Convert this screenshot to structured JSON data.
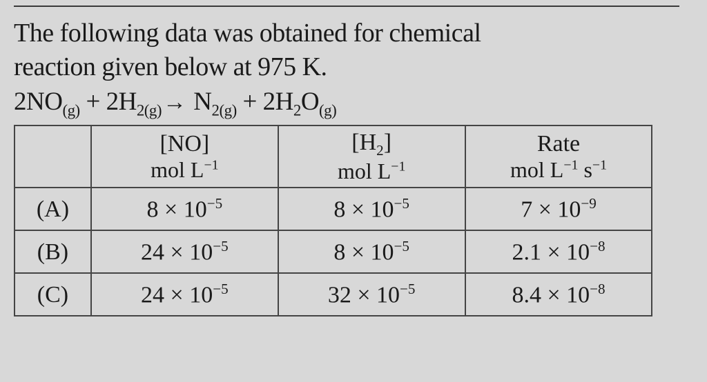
{
  "meta": {
    "type": "table",
    "background_color": "#d8d8d8",
    "text_color": "#1a1a1a",
    "font_family": "Times New Roman",
    "border_color": "#444444",
    "border_width": 2,
    "intro_fontsize": 38,
    "equation_fontsize": 37,
    "cell_fontsize": 34
  },
  "intro": {
    "line1": "The following data was obtained for chemical",
    "line2": "reaction given below at 975 K."
  },
  "equation": {
    "r1_coef": "2NO",
    "r1_phase": "(g)",
    "plus1": " + ",
    "r2_coef": "2H",
    "r2_sub": "2(g)",
    "arrow": "→",
    "p1_coef": " N",
    "p1_sub": "2(g)",
    "plus2": " + ",
    "p2_coef": "2H",
    "p2_sub": "2",
    "p2_ox": "O",
    "p2_phase": "(g)"
  },
  "headers": {
    "blank": "",
    "col1_label": "[NO]",
    "col1_unit_pre": "mol L",
    "col1_unit_exp": "−1",
    "col2_label": "[H",
    "col2_label_sub": "2",
    "col2_label_close": "]",
    "col2_unit_pre": "mol L",
    "col2_unit_exp": "−1",
    "col3_label": "Rate",
    "col3_unit_pre": "mol L",
    "col3_unit_exp1": "−1",
    "col3_unit_mid": " s",
    "col3_unit_exp2": "−1"
  },
  "rows": [
    {
      "label": "(A)",
      "c1_base": "8 × 10",
      "c1_exp": "−5",
      "c2_base": "8 × 10",
      "c2_exp": "−5",
      "c3_base": "7 × 10",
      "c3_exp": "−9"
    },
    {
      "label": "(B)",
      "c1_base": "24 × 10",
      "c1_exp": "−5",
      "c2_base": "8 × 10",
      "c2_exp": "−5",
      "c3_base": "2.1 × 10",
      "c3_exp": "−8"
    },
    {
      "label": "(C)",
      "c1_base": "24 × 10",
      "c1_exp": "−5",
      "c2_base": "32 × 10",
      "c2_exp": "−5",
      "c3_base": "8.4 × 10",
      "c3_exp": "−8"
    }
  ]
}
